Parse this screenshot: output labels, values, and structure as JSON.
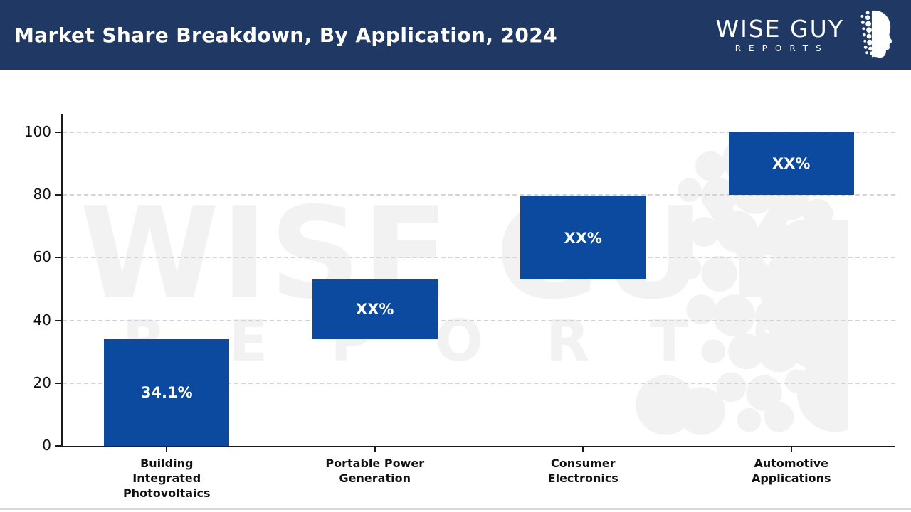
{
  "header": {
    "title": "Market Share Breakdown, By Application, 2024",
    "bg_color": "#1f3864",
    "logo": {
      "wordmark": "WISE GUY",
      "subtitle": "REPORTS"
    }
  },
  "watermark": {
    "wordmark": "WISE GUY",
    "subtitle": "REPORTS"
  },
  "chart_data": {
    "type": "bar",
    "subtype": "waterfall",
    "title": "Market Share Breakdown, By Application, 2024",
    "categories": [
      "Building Integrated Photovoltaics",
      "Portable Power Generation",
      "Consumer Electronics",
      "Automotive Applications"
    ],
    "category_label_lines": [
      [
        "Building",
        "Integrated",
        "Photovoltaics"
      ],
      [
        "Portable Power",
        "Generation"
      ],
      [
        "Consumer",
        "Electronics"
      ],
      [
        "Automotive",
        "Applications"
      ]
    ],
    "segments": [
      {
        "label": "34.1%",
        "start": 0,
        "end": 34.1
      },
      {
        "label": "XX%",
        "start": 34.1,
        "end": 53.0
      },
      {
        "label": "XX%",
        "start": 53.0,
        "end": 79.5
      },
      {
        "label": "XX%",
        "start": 80.0,
        "end": 100.0
      }
    ],
    "xlabel": "",
    "ylabel": "",
    "yticks": [
      0,
      20,
      40,
      60,
      80,
      100
    ],
    "ylim": [
      0,
      106
    ],
    "grid": "horizontal-dashed",
    "legend": "none",
    "bar_color": "#0b4a9e",
    "bar_label_color": "#ffffff",
    "axis_color": "#1a1a1a",
    "grid_color": "#d4d4d4",
    "tick_label_color": "#111111"
  }
}
